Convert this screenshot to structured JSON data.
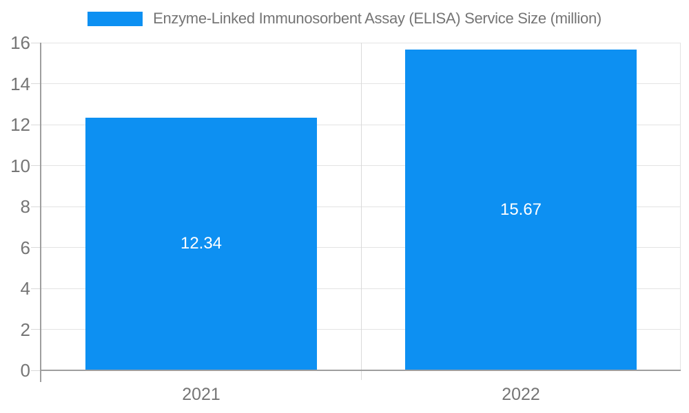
{
  "colors": {
    "bar_fill": "#0d90f2",
    "grid_line": "#e3e3e3",
    "divider_line": "#d9d9d9",
    "tick_line": "#d9d9d9",
    "axis_line": "#9e9e9e",
    "label_text": "#757575",
    "value_text": "#ffffff",
    "background": "#ffffff"
  },
  "legend": {
    "label": "Enzyme-Linked Immunosorbent Assay (ELISA) Service Size (million)"
  },
  "chart_data": {
    "type": "bar",
    "title": "",
    "xlabel": "",
    "ylabel": "",
    "categories": [
      "2021",
      "2022"
    ],
    "values": [
      12.34,
      15.67
    ],
    "value_labels": [
      "12.34",
      "15.67"
    ],
    "series_name": "Enzyme-Linked Immunosorbent Assay (ELISA) Service Size (million)",
    "ylim": [
      0,
      16
    ],
    "yticks": [
      0,
      2,
      4,
      6,
      8,
      10,
      12,
      14,
      16
    ],
    "grid": true,
    "legend_position": "top-center",
    "value_label_position": "center-inside"
  }
}
